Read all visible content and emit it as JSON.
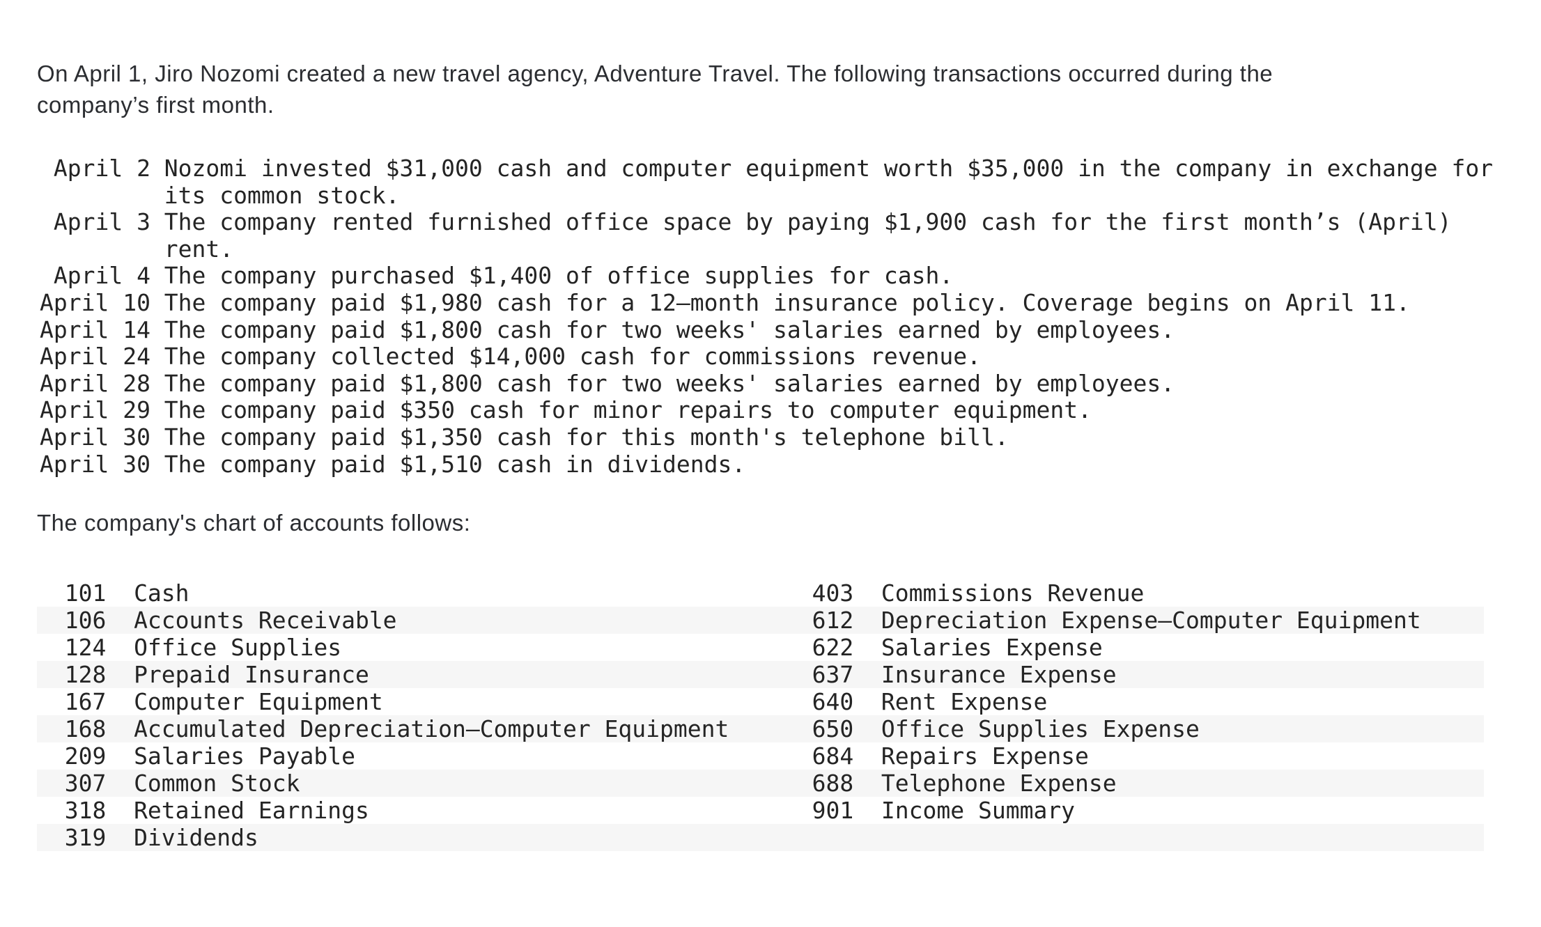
{
  "colors": {
    "background": "#ffffff",
    "sans_text": "#2b2d31",
    "mono_text": "#242424",
    "row_stripe": "#f6f6f6"
  },
  "intro": "On April 1, Jiro Nozomi created a new travel agency, Adventure Travel. The following transactions occurred during the company’s first month.",
  "transactions": [
    {
      "date": "April 2",
      "text": "Nozomi invested $31,000 cash and computer equipment worth $35,000 in the company in exchange for its common stock."
    },
    {
      "date": "April 3",
      "text": "The company rented furnished office space by paying $1,900 cash for the first month’s (April) rent."
    },
    {
      "date": "April 4",
      "text": "The company purchased $1,400 of office supplies for cash."
    },
    {
      "date": "April 10",
      "text": "The company paid $1,980 cash for a 12–month insurance policy. Coverage begins on April 11."
    },
    {
      "date": "April 14",
      "text": "The company paid $1,800 cash for two weeks' salaries earned by employees."
    },
    {
      "date": "April 24",
      "text": "The company collected $14,000 cash for commissions revenue."
    },
    {
      "date": "April 28",
      "text": "The company paid $1,800 cash for two weeks' salaries earned by employees."
    },
    {
      "date": "April 29",
      "text": "The company paid $350 cash for minor repairs to computer equipment."
    },
    {
      "date": "April 30",
      "text": "The company paid $1,350 cash for this month's telephone bill."
    },
    {
      "date": "April 30",
      "text": "The company paid $1,510 cash in dividends."
    }
  ],
  "chart_heading": "The company's chart of accounts follows:",
  "accounts": {
    "rows": [
      {
        "left_no": "101",
        "left_name": "Cash",
        "right_no": "403",
        "right_name": "Commissions Revenue"
      },
      {
        "left_no": "106",
        "left_name": "Accounts Receivable",
        "right_no": "612",
        "right_name": "Depreciation Expense—Computer Equipment"
      },
      {
        "left_no": "124",
        "left_name": "Office Supplies",
        "right_no": "622",
        "right_name": "Salaries Expense"
      },
      {
        "left_no": "128",
        "left_name": "Prepaid Insurance",
        "right_no": "637",
        "right_name": "Insurance Expense"
      },
      {
        "left_no": "167",
        "left_name": "Computer Equipment",
        "right_no": "640",
        "right_name": "Rent Expense"
      },
      {
        "left_no": "168",
        "left_name": "Accumulated Depreciation—Computer Equipment",
        "right_no": "650",
        "right_name": "Office Supplies Expense"
      },
      {
        "left_no": "209",
        "left_name": "Salaries Payable",
        "right_no": "684",
        "right_name": "Repairs Expense"
      },
      {
        "left_no": "307",
        "left_name": "Common Stock",
        "right_no": "688",
        "right_name": "Telephone Expense"
      },
      {
        "left_no": "318",
        "left_name": "Retained Earnings",
        "right_no": "901",
        "right_name": "Income Summary"
      },
      {
        "left_no": "319",
        "left_name": "Dividends",
        "right_no": "",
        "right_name": ""
      }
    ]
  }
}
